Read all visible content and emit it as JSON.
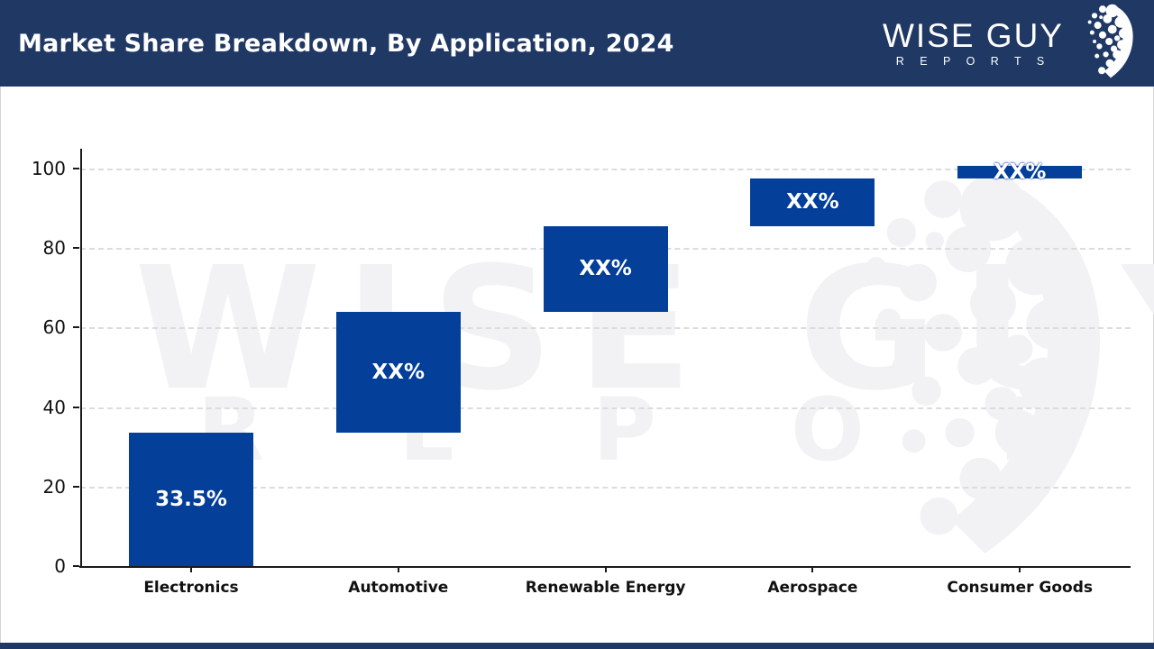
{
  "header": {
    "title": "Market Share Breakdown, By Application, 2024",
    "logo": {
      "primary": "WISE GUY",
      "secondary": "R E P O R T S"
    }
  },
  "watermark": {
    "line1": "WISE GUY",
    "line2": "R E P O R T S"
  },
  "colors": {
    "header_bg": "#1f3864",
    "bar": "#04409a",
    "grid": "#dcdcdc",
    "axis": "#1a1a1a",
    "watermark": "#f2f2f5"
  },
  "chart_data": {
    "type": "bar",
    "subtype": "waterfall",
    "title": "Market Share Breakdown, By Application, 2024",
    "categories": [
      "Electronics",
      "Automotive",
      "Renewable Energy",
      "Aerospace",
      "Consumer Goods"
    ],
    "bars": [
      {
        "category": "Electronics",
        "start": 0,
        "end": 33.5,
        "label": "33.5%"
      },
      {
        "category": "Automotive",
        "start": 33.5,
        "end": 64,
        "label": "XX%"
      },
      {
        "category": "Renewable Energy",
        "start": 64,
        "end": 85.5,
        "label": "XX%"
      },
      {
        "category": "Aerospace",
        "start": 85.5,
        "end": 97.5,
        "label": "XX%"
      },
      {
        "category": "Consumer Goods",
        "start": 97.4,
        "end": 100.6,
        "label": "XX%"
      }
    ],
    "y_ticks": [
      0,
      20,
      40,
      60,
      80,
      100
    ],
    "ylim": [
      0,
      105
    ],
    "xlabel": "",
    "ylabel": "",
    "grid": "horizontal-dashed",
    "legend": "none",
    "bar_color": "#04409a",
    "bar_label_color": "#ffffff"
  }
}
